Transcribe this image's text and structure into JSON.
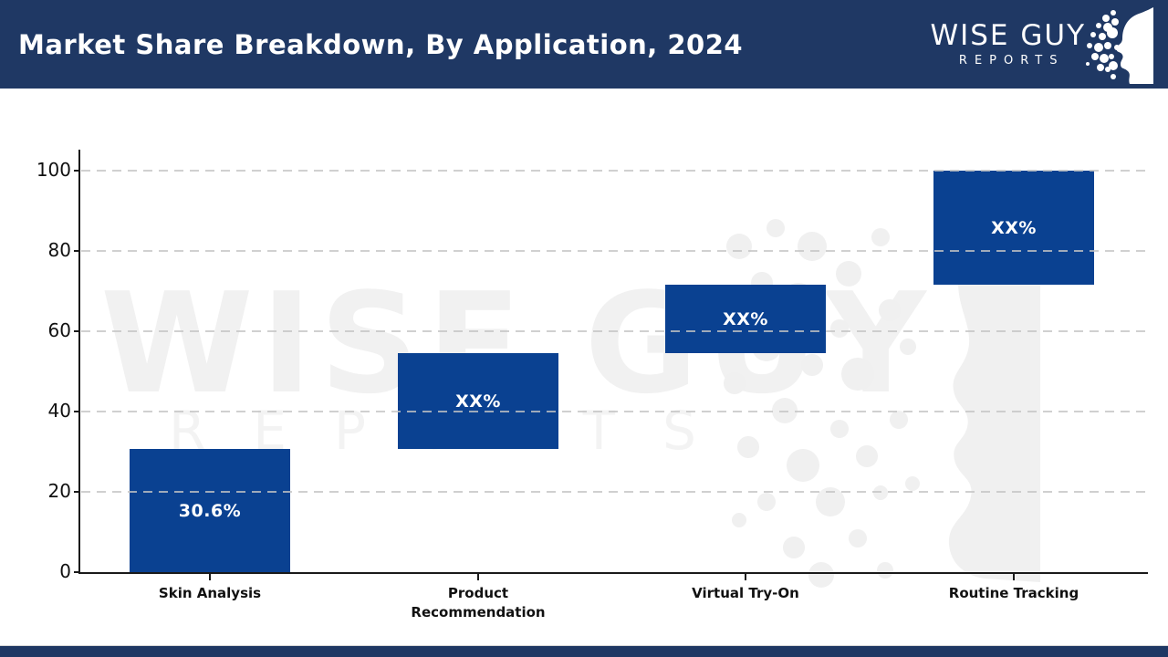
{
  "header": {
    "title": "Market Share Breakdown, By Application, 2024",
    "logo": {
      "name": "WISE GUY",
      "sub": "REPORTS"
    }
  },
  "watermark": {
    "main": "WISE GUY",
    "sub": "REPORTS"
  },
  "chart_data": {
    "type": "bar",
    "subtype": "waterfall",
    "title": "Market Share Breakdown, By Application, 2024",
    "categories": [
      "Skin Analysis",
      "Product Recommendation",
      "Virtual Try-On",
      "Routine Tracking"
    ],
    "segments": [
      {
        "category": "Skin Analysis",
        "start": 0,
        "end": 30.6,
        "label": "30.6%"
      },
      {
        "category": "Product Recommendation",
        "start": 30.6,
        "end": 54.5,
        "label": "XX%"
      },
      {
        "category": "Virtual Try-On",
        "start": 54.5,
        "end": 71.5,
        "label": "XX%"
      },
      {
        "category": "Routine Tracking",
        "start": 71.5,
        "end": 100,
        "label": "XX%"
      }
    ],
    "xlabel": "",
    "ylabel": "",
    "ylim": [
      0,
      100
    ],
    "yticks": [
      0,
      20,
      40,
      60,
      80,
      100
    ],
    "grid": "horizontal-dashed",
    "legend": "none",
    "colors": {
      "bar": "#0a4191",
      "bar_label": "#ffffff",
      "header_bg": "#1f3864",
      "grid": "#c4c4c4",
      "axis": "#1a1a1a"
    }
  }
}
